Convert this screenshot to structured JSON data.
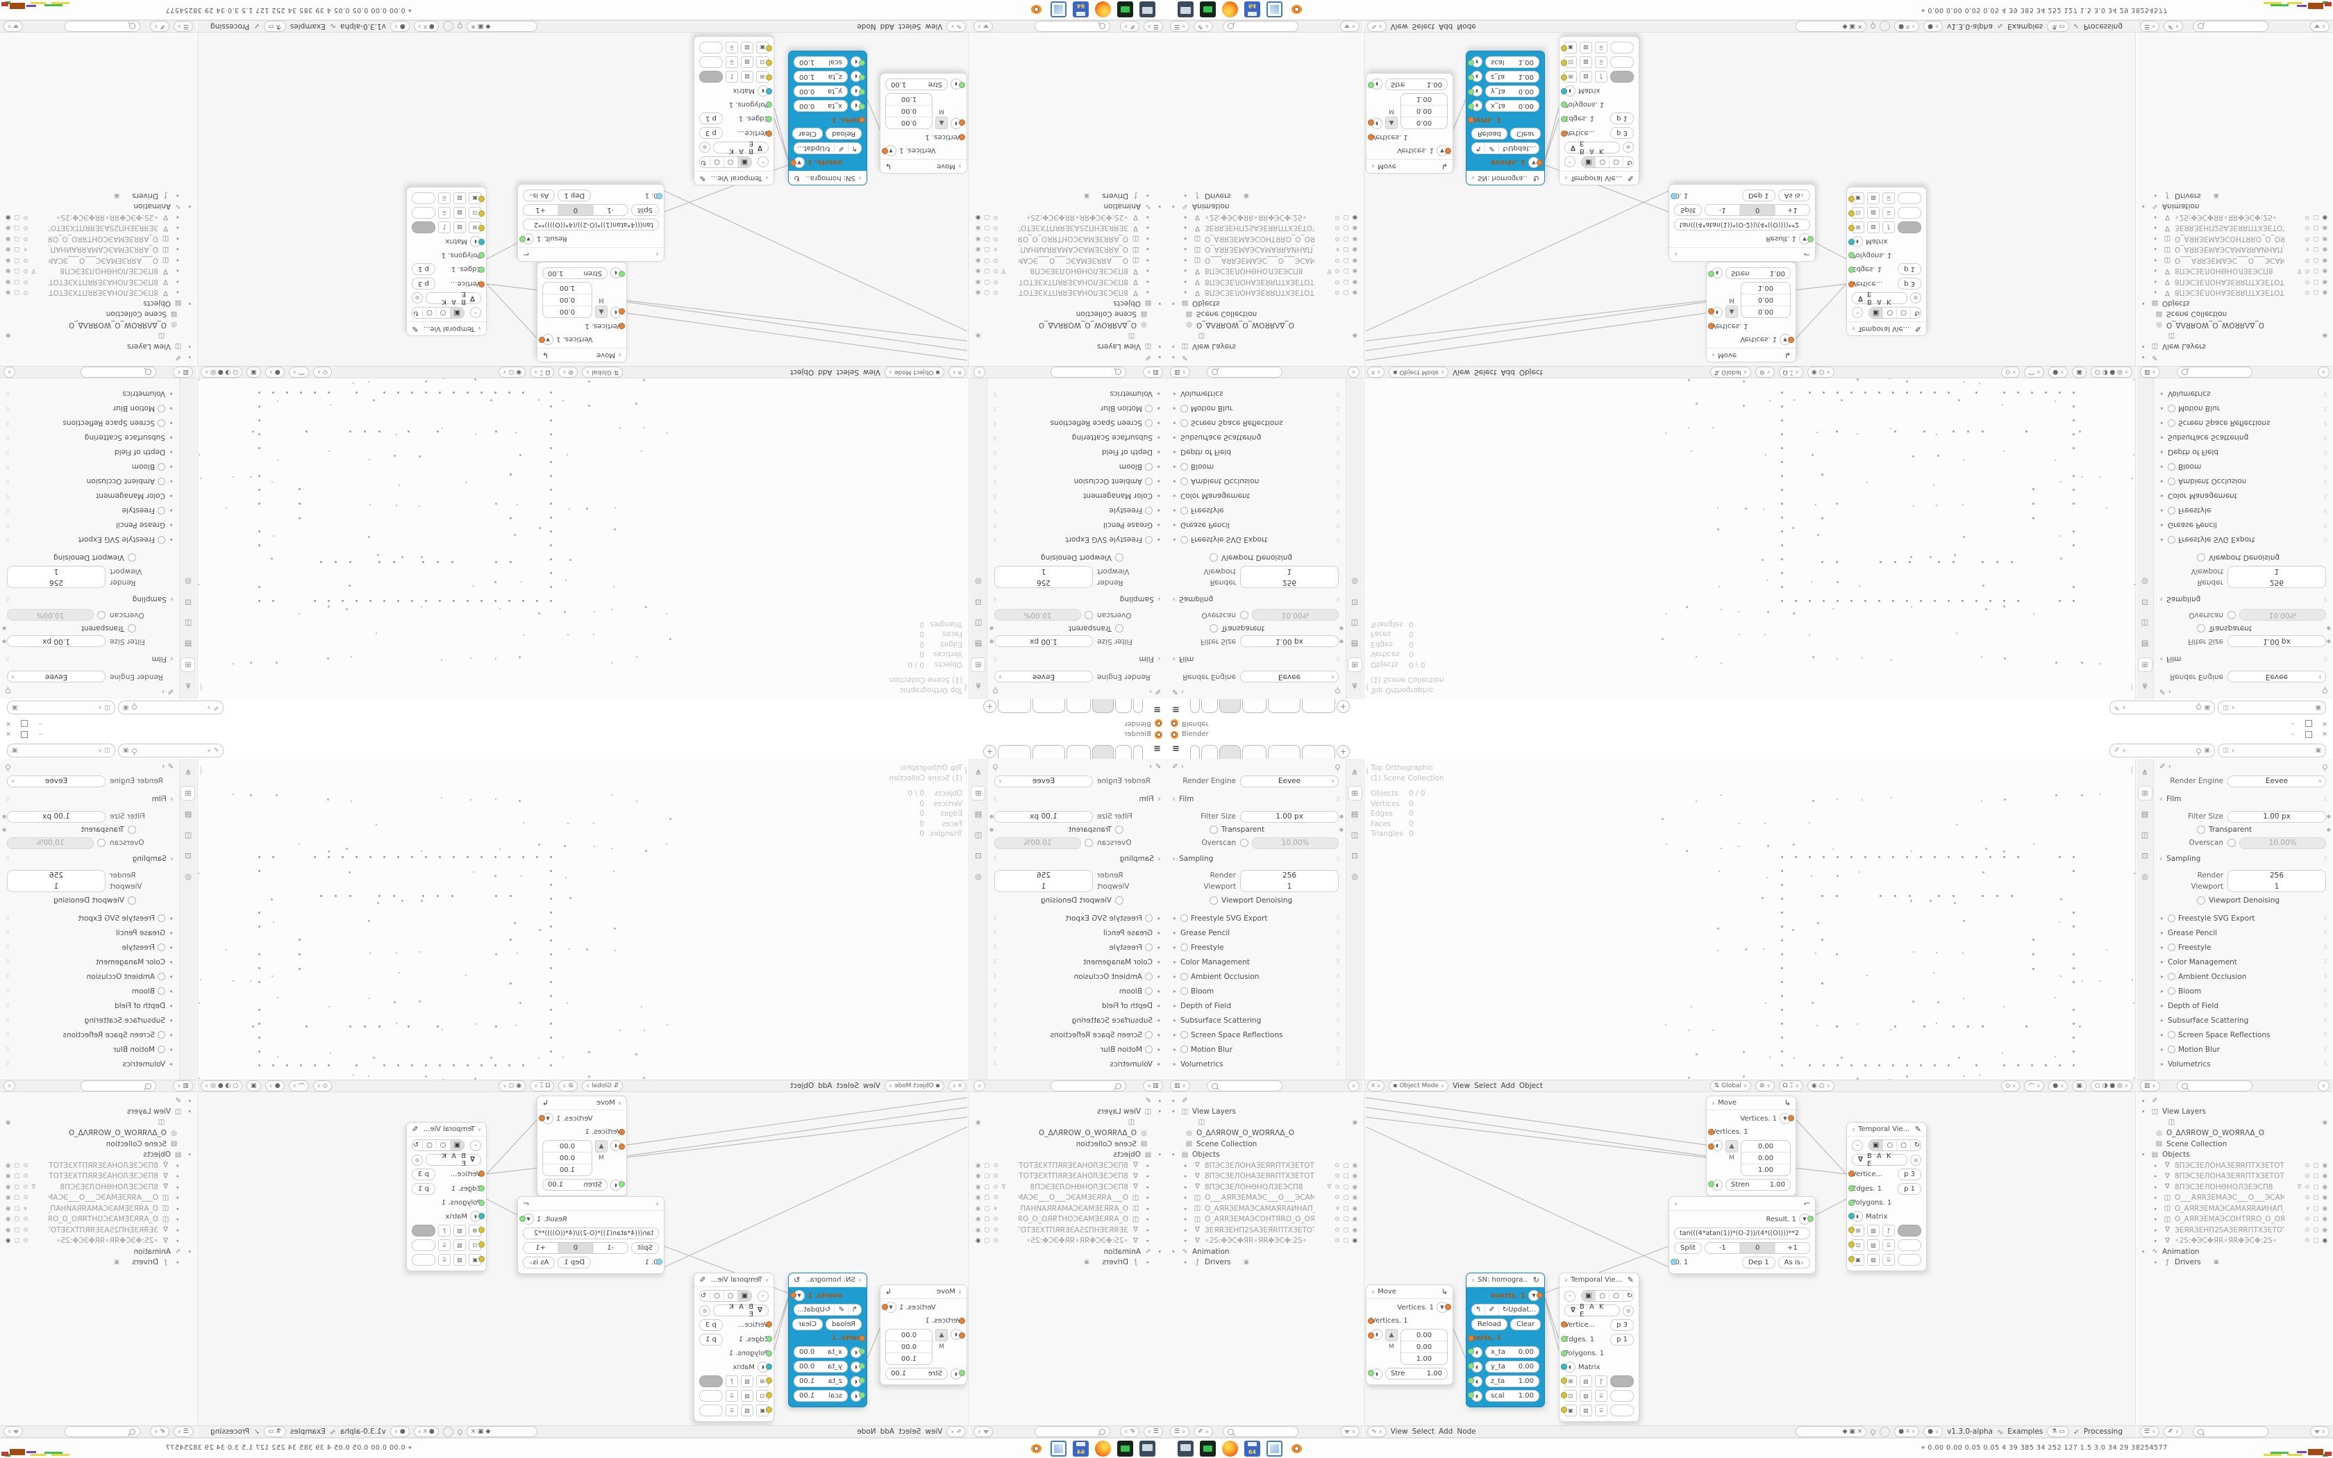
{
  "window": {
    "title": "Blender"
  },
  "topbar": {
    "add_label": "+"
  },
  "props": {
    "render_engine": {
      "label": "Render Engine",
      "value": "Eevee"
    },
    "film": {
      "title": "Film",
      "filter_size_label": "Filter Size",
      "filter_size_value": "1.00 px",
      "transparent_label": "Transparent",
      "overscan_label": "Overscan",
      "overscan_value": "10.00%"
    },
    "sampling": {
      "title": "Sampling",
      "render_label": "Render",
      "render_value": "256",
      "viewport_label": "Viewport",
      "viewport_value": "1",
      "denoise_label": "Viewport Denoising"
    },
    "collapsed": [
      {
        "label": "Freestyle SVG Export"
      },
      {
        "label": "Grease Pencil"
      },
      {
        "label": "Freestyle"
      },
      {
        "label": "Color Management"
      },
      {
        "label": "Ambient Occlusion"
      },
      {
        "label": "Bloom"
      },
      {
        "label": "Depth of Field"
      },
      {
        "label": "Subsurface Scattering"
      },
      {
        "label": "Screen Space Reflections"
      },
      {
        "label": "Motion Blur"
      },
      {
        "label": "Volumetrics"
      }
    ]
  },
  "viewport": {
    "view_label": "Top Orthographic",
    "collection_label": "(1) Scene Collection",
    "stats": [
      {
        "k": "Objects",
        "v": "0 / 0"
      },
      {
        "k": "Vertices",
        "v": "0"
      },
      {
        "k": "Edges",
        "v": "0"
      },
      {
        "k": "Faces",
        "v": "0"
      },
      {
        "k": "Triangles",
        "v": "0"
      }
    ],
    "header": {
      "mode": "Object Mode",
      "menus": [
        "View",
        "Select",
        "Add",
        "Object"
      ],
      "orientation": "Global"
    }
  },
  "outliner": {
    "view_layers": "View Layers",
    "world": "O_ΔΛЯROW_O_WOЯRΛΔ_O",
    "scene_collection": "Scene Collection",
    "objects": "Objects",
    "items": [
      "8ПЭСЗЕЛОНАЗЕЯRПТХЗЕТОТЗЕХ(",
      "8ПЭСЗЕЛОНАЗЕЯRПТХЗЕТОТЗЕХ",
      "8ПЭСЗЕЛОНѲНОЛЗЕЭСП8",
      "O___АЯRЗЕМАЭС___O___ЭСАМЗЕ",
      "O_АЯRЗЕМАЭСАМАЯRАИНАП__O_",
      "O_АЯRЗЕМАЭСОНТЯRO_O_ОЯRТНС",
      "ЗЕЯRЗЕНП2SАЗЕЯRПТХЗЕТОТЗЕ(",
      "∘2S:✤ЭС✤ЯR∘ЯR✤ЭС✤:2S∘"
    ],
    "animation": "Animation",
    "drivers": "Drivers"
  },
  "node_editor": {
    "header": {
      "menus": [
        "View",
        "Select",
        "Add",
        "Node"
      ],
      "version": "v1.3.0-alpha",
      "examples_label": "Examples",
      "tree_name": "Processing"
    },
    "move1": {
      "title": "Move",
      "output_label": "Vertices. 1",
      "input_label": "Vertices. 1",
      "m_label": "M",
      "values": [
        "0.00",
        "0.00",
        "1.00"
      ],
      "strength_label": "Stre",
      "strength_value": "1.00"
    },
    "move2": {
      "title": "Move",
      "output_label": "Vertices. 1",
      "input_label": "Vertices. 1",
      "m_label": "M",
      "values": [
        "0.00",
        "0.00",
        "1.00"
      ],
      "strength_label": "Stren",
      "strength_value": "1.00"
    },
    "homograph": {
      "title": "SN: homogra..",
      "output_label": "overts. 1",
      "update_label": "Updat...",
      "reload_label": "Reload",
      "clear_label": "Clear",
      "input_label": "verts. 1",
      "fields": [
        {
          "k": "x_ta",
          "v": "0.00"
        },
        {
          "k": "y_ta",
          "v": "0.00"
        },
        {
          "k": "z_ta",
          "v": "1.00"
        },
        {
          "k": "scal",
          "v": "1.00"
        }
      ]
    },
    "temporal": {
      "title": "Temporal Vie...",
      "bake_label": "B A K E",
      "rows": [
        {
          "k": "Vertice...",
          "v": "p  3"
        },
        {
          "k": "Edges. 1",
          "v": "p  1"
        },
        {
          "k": "Polygons. 1",
          "v": ""
        },
        {
          "k": "Matrix",
          "v": ""
        }
      ]
    },
    "formula": {
      "result_label": "Result. 1",
      "expression": "tan(((4*atan(1))*(O-2))/(4*((O))))**2",
      "split_label": "Split",
      "dec_label": "-1",
      "zero_label": "0",
      "inc_label": "+1",
      "output_label": "O. 1",
      "depth_value": "Dep 1",
      "mode_value": "As is"
    }
  },
  "taskbar": {
    "stats": "0.00 0.00 0.05 0.05    4    39    385    34    252    127    1.5    3.0    34    29    38254577"
  },
  "icons": {
    "hamburger-menu": "≡",
    "add-tab": "+",
    "collapse-arrow": "∨",
    "expand-arrow": "▸",
    "pin": "css-pin",
    "search": "css-magnifier",
    "filter-funnel": "css-funnel",
    "mesh-data": "∇",
    "camera-object": "◫",
    "eye-toggle": "⊙",
    "screen-toggle": "▢",
    "camera-toggle": "◉",
    "bake-triangle": "∇",
    "refresh": "↻",
    "pencil": "✎",
    "move-axis": "↳",
    "minimize": "–",
    "maximize": "css-square",
    "close": "×"
  },
  "colors": {
    "node_selected_blue": "#1f9dd1",
    "socket_orange": "#e2833b",
    "socket_green": "#8ee08a",
    "socket_cyan": "#3cb8c4",
    "socket_yellow": "#d9c13c",
    "socket_blue": "#8fd3f0",
    "blender_orange": "#ff8d1c",
    "ui_bg": "#f8f8f8"
  }
}
